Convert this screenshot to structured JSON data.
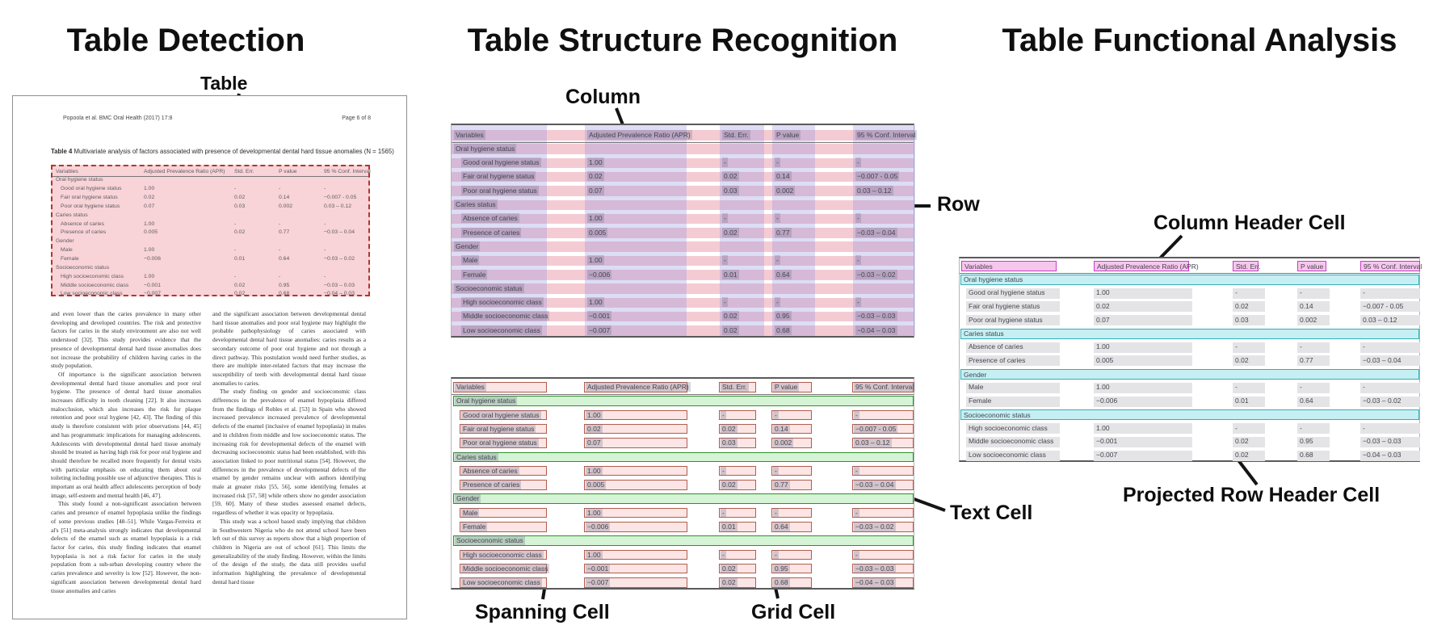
{
  "titles": {
    "detection": "Table Detection",
    "structure": "Table Structure Recognition",
    "functional": "Table Functional Analysis"
  },
  "labels": {
    "table": "Table",
    "column": "Column",
    "row": "Row",
    "spanning_cell": "Spanning Cell",
    "grid_cell": "Grid Cell",
    "text_cell": "Text Cell",
    "column_header_cell": "Column Header Cell",
    "projected_row_header_cell": "Projected Row Header Cell"
  },
  "document": {
    "header_left": "Popoola et al. BMC Oral Health  (2017) 17:8",
    "header_right": "Page 6 of 8",
    "caption_bold": "Table 4",
    "caption_rest": " Multivariate analysis of factors associated with presence of developmental dental hard tissue anomalies (N = 1565)",
    "body_col1": [
      "and even lower than the caries prevalence in many other developing and developed countries. The risk and protective factors for caries in the study environment are also not well understood [32]. This study provides evidence that the presence of developmental dental hard tissue anomalies does not increase the probability of children having caries in the study population.",
      "Of importance is the significant association between developmental dental hard tissue anomalies and poor oral hygiene. The presence of dental hard tissue anomalies increases difficulty in tooth cleaning [22]. It also increases malocclusion, which also increases the risk for plaque retention and poor oral hygiene [42, 43]. The finding of this study is therefore consistent with prior observations [44, 45] and has programmatic implications for managing adolescents. Adolescents with developmental dental hard tissue anomaly should be treated as having high risk for poor oral hygiene and should therefore be recalled more frequently for dental visits with particular emphasis on educating them about oral toileting including possible use of adjunctive therapies. This is important as oral health affect adolescents perception of body image, self-esteem and mental health [46, 47].",
      "This study found a non-significant association between caries and presence of enamel hypoplasia unlike the findings of some previous studies [48–51]. While Vargas-Ferreira et al's [51] meta-analysis strongly indicates that developmental defects of the enamel such as enamel hypoplasia is a risk factor for caries, this study finding indicates that enamel hypoplasia is not a risk factor for caries in the study population from a sub-urban developing country where the caries prevalence and severity is low [52]. However, the non-significant association between developmental dental hard tissue anomalies and caries"
    ],
    "body_col2": [
      "and the significant association between developmental dental hard tissue anomalies and poor oral hygiene may highlight the probable pathophysiology of caries associated with developmental dental hard tissue anomalies: caries results as a secondary outcome of poor oral hygiene and not through a direct pathway. This postulation would need further studies, as there are multiple inter-related factors that may increase the susceptibility of teeth with developmental dental hard tissue anomalies to caries.",
      "The study finding on gender and socioeconomic class differences in the prevalence of enamel hypoplasia differed from the findings of Robles et al. [53] in Spain who showed increased prevalence increased prevalence of developmental defects of the enamel (inclusive of enamel hypoplasia) in males and in children from middle and low socioeconomic status. The increasing risk for developmental defects of the enamel with decreasing socioeconomic status had been established, with this association linked to poor nutritional status [54]. However, the differences in the prevalence of developmental defects of the enamel by gender remains unclear with authors identifying male at greater risks [55, 56], some identifying females at increased risk [57, 58] while others show no gender association [59, 60]. Many of these studies assessed enamel defects, regardless of whether it was opacity or hypoplasia.",
      "This study was a school based study implying that children in Southwestern Nigeria who do not attend school have been left out of this survey as reports show that a high proportion of children in Nigeria are out of school [61]. This limits the generalizability of the study finding. However, within the limits of the design of the study, the data still provides useful information highlighting the prevalence of developmental dental hard tissue"
    ]
  },
  "chart_data": {
    "type": "table",
    "headers": [
      "Variables",
      "Adjusted Prevalence Ratio (APR)",
      "Std. Err.",
      "P value",
      "95 % Conf. Interval"
    ],
    "rows": [
      {
        "label": "Oral hygiene status",
        "type": "section",
        "values": []
      },
      {
        "label": "Good oral hygiene status",
        "type": "data",
        "values": [
          "1.00",
          "-",
          "-",
          "-"
        ]
      },
      {
        "label": "Fair oral hygiene status",
        "type": "data",
        "values": [
          "0.02",
          "0.02",
          "0.14",
          "−0.007 - 0.05"
        ]
      },
      {
        "label": "Poor oral hygiene status",
        "type": "data",
        "values": [
          "0.07",
          "0.03",
          "0.002",
          "0.03 – 0.12"
        ]
      },
      {
        "label": "Caries status",
        "type": "section",
        "values": []
      },
      {
        "label": "Absence of caries",
        "type": "data",
        "values": [
          "1.00",
          "-",
          "-",
          "-"
        ]
      },
      {
        "label": "Presence of caries",
        "type": "data",
        "values": [
          "0.005",
          "0.02",
          "0.77",
          "−0.03 – 0.04"
        ]
      },
      {
        "label": "Gender",
        "type": "section",
        "values": []
      },
      {
        "label": "Male",
        "type": "data",
        "values": [
          "1.00",
          "-",
          "-",
          "-"
        ]
      },
      {
        "label": "Female",
        "type": "data",
        "values": [
          "−0.006",
          "0.01",
          "0.64",
          "−0.03 – 0.02"
        ]
      },
      {
        "label": "Socioeconomic status",
        "type": "section",
        "values": []
      },
      {
        "label": "High socioeconomic class",
        "type": "data",
        "values": [
          "1.00",
          "-",
          "-",
          "-"
        ]
      },
      {
        "label": "Middle socioeconomic class",
        "type": "data",
        "values": [
          "−0.001",
          "0.02",
          "0.95",
          "−0.03 – 0.03"
        ]
      },
      {
        "label": "Low socioeconomic class",
        "type": "data",
        "values": [
          "−0.007",
          "0.02",
          "0.68",
          "−0.04 – 0.03"
        ]
      }
    ]
  },
  "colors": {
    "detection_fill": "rgba(238,150,160,0.42)",
    "detection_border": "#b5342f",
    "row_band": "rgba(230,130,150,0.42)",
    "column_band": "rgba(150,150,225,0.32)",
    "text_highlight": "rgba(106,106,138,0.28)",
    "grid_cell_fill": "rgba(242,175,175,0.32)",
    "grid_cell_border": "#b25d4e",
    "spanning_fill": "rgba(150,225,150,0.40)",
    "spanning_border": "#2f8f2f",
    "header_cell_fill": "rgba(238,128,215,0.45)",
    "header_cell_border": "#c83cc8",
    "proj_row_fill": "rgba(150,226,232,0.55)",
    "proj_row_border": "#3aacb6",
    "gray_cell": "#e4e4e6",
    "line_color": "#141414"
  }
}
